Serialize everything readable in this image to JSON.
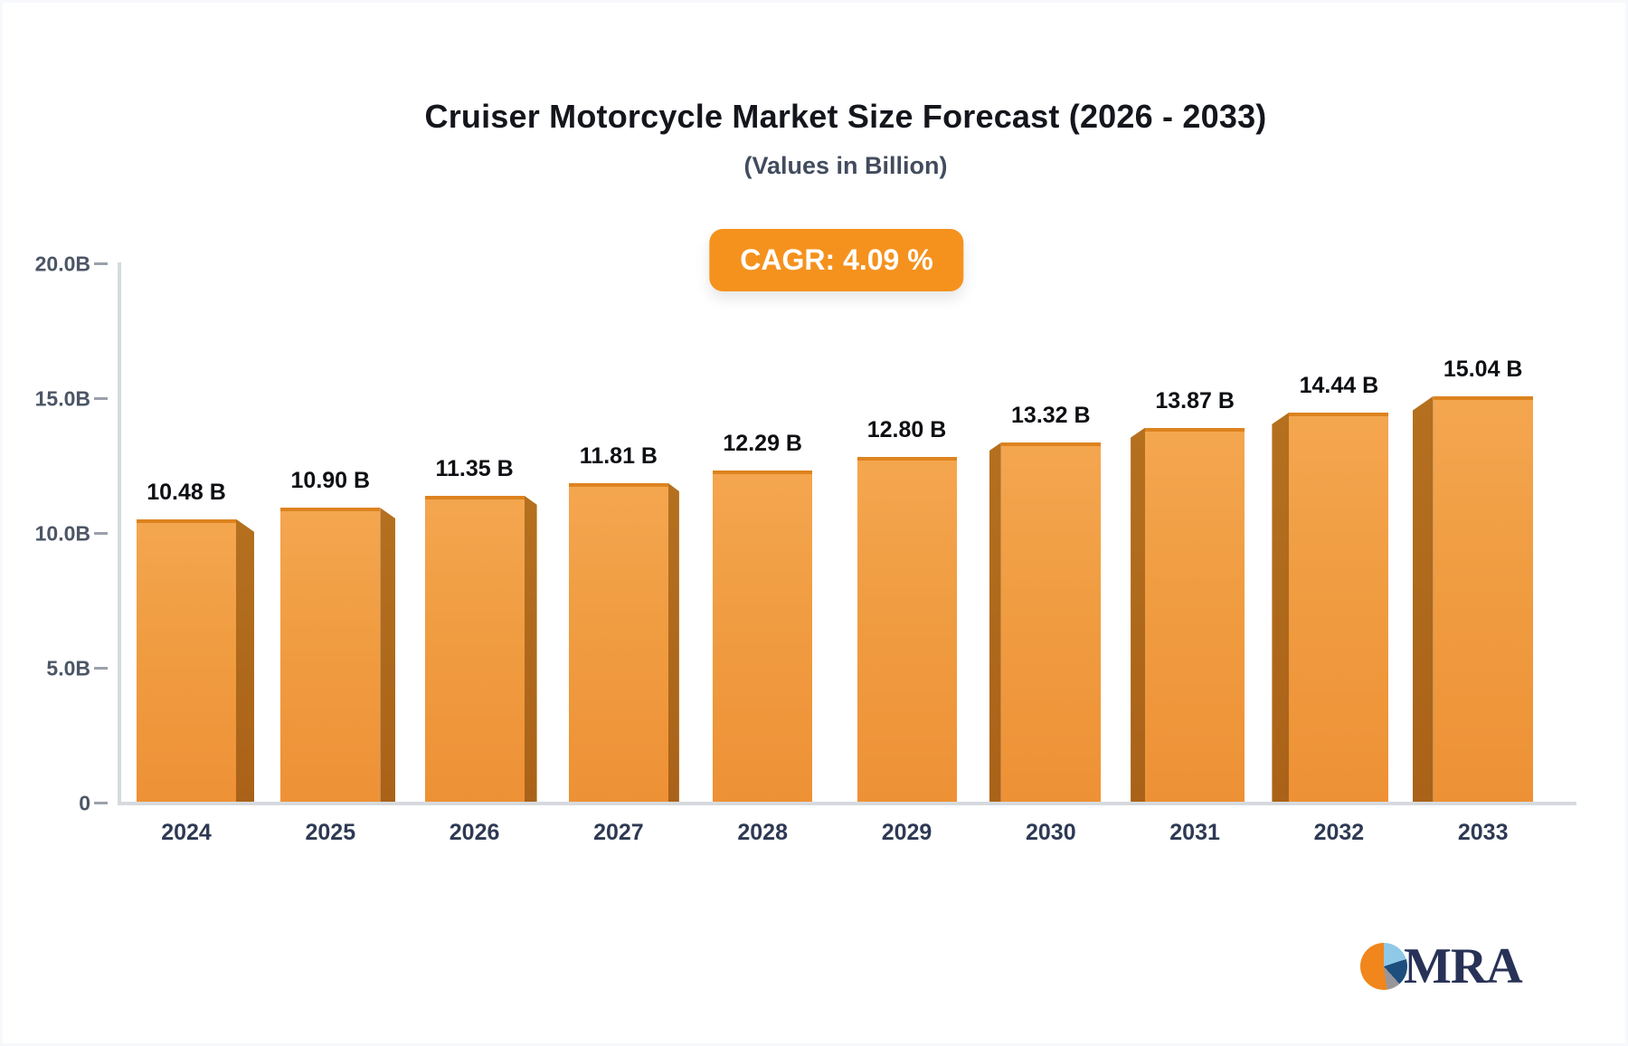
{
  "header": {
    "title": "Cruiser Motorcycle Market Size Forecast (2026 - 2033)",
    "subtitle": "(Values in Billion)",
    "cagr_label": "CAGR: 4.09 %"
  },
  "chart_data": {
    "type": "bar",
    "title": "Cruiser Motorcycle Market Size Forecast (2026 - 2033)",
    "subtitle": "(Values in Billion)",
    "cagr_percent": 4.09,
    "categories": [
      "2024",
      "2025",
      "2026",
      "2027",
      "2028",
      "2029",
      "2030",
      "2031",
      "2032",
      "2033"
    ],
    "values": [
      10.48,
      10.9,
      11.35,
      11.81,
      12.29,
      12.8,
      13.32,
      13.87,
      14.44,
      15.04
    ],
    "value_labels": [
      "10.48 B",
      "10.90 B",
      "11.35 B",
      "11.81 B",
      "12.29 B",
      "12.80 B",
      "13.32 B",
      "13.87 B",
      "14.44 B",
      "15.04 B"
    ],
    "ylim": [
      0,
      20
    ],
    "yticks": [
      {
        "value": 0,
        "label": "0"
      },
      {
        "value": 5,
        "label": "5.0B"
      },
      {
        "value": 10,
        "label": "10.0B"
      },
      {
        "value": 15,
        "label": "15.0B"
      },
      {
        "value": 20,
        "label": "20.0B"
      }
    ],
    "grid": false,
    "legend": "none",
    "colors": {
      "bar_face_top": "#F4A64F",
      "bar_face_bottom": "#EE9136",
      "bar_top_border": "#DD831F",
      "bar_side_dark": "#AE6820",
      "axis_line": "#D6DADE",
      "tick_dash": "#9AA1AB",
      "cagr_badge_bg": "#F5921E",
      "label_text": "#0D0F13",
      "year_text": "#2E3A54"
    }
  },
  "logo": {
    "text": "MRA",
    "icon": "pie-chart-icon",
    "icon_colors": [
      "#F0861C",
      "#8EC9E8",
      "#1D4E7E",
      "#98969A"
    ]
  }
}
